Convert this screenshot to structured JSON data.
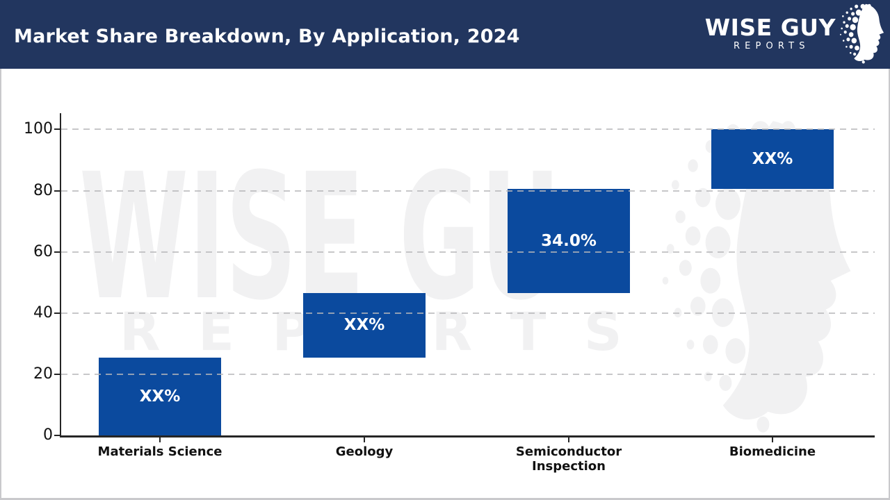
{
  "header": {
    "logo": {
      "line1": "WISE GUY",
      "line2": "REPORTS"
    }
  },
  "watermark": {
    "line1": "WISE GU",
    "line2": "R E P O R T S"
  },
  "chart_data": {
    "type": "bar",
    "subtype": "waterfall",
    "title": "Market Share Breakdown, By Application, 2024",
    "categories": [
      "Materials Science",
      "Geology",
      "Semiconductor Inspection",
      "Biomedicine"
    ],
    "segments": [
      {
        "category": "Materials Science",
        "start": 0,
        "end": 25.5,
        "value": 25.5,
        "value_label": "XX%"
      },
      {
        "category": "Geology",
        "start": 25.5,
        "end": 46.5,
        "value": 21.0,
        "value_label": "XX%"
      },
      {
        "category": "Semiconductor Inspection",
        "start": 46.5,
        "end": 80.5,
        "value": 34.0,
        "value_label": "34.0%"
      },
      {
        "category": "Biomedicine",
        "start": 80.5,
        "end": 100,
        "value": 19.5,
        "value_label": "XX%"
      }
    ],
    "ylim": [
      0,
      100
    ],
    "yticks": [
      0,
      20,
      40,
      60,
      80,
      100
    ],
    "grid": "horizontal dashed, drawn above bars",
    "legend": "none",
    "bar_color": "#0b4a9e",
    "bar_label_color": "#ffffff",
    "header_color": "#22365F"
  }
}
